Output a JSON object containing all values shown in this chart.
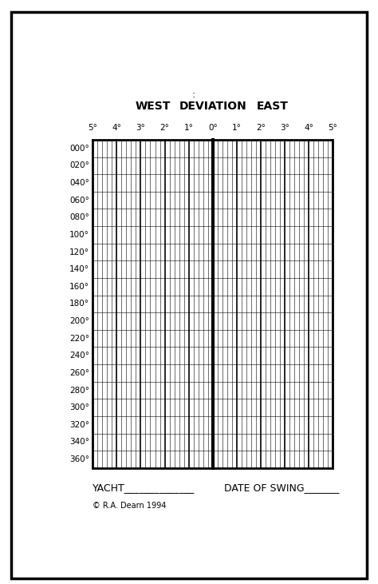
{
  "title": ":",
  "west_label": "WEST",
  "east_label": "EAST",
  "deviation_label": "DEVIATION",
  "col_labels": [
    "5°",
    "4°",
    "3°",
    "2°",
    "1°",
    "0°",
    "1°",
    "2°",
    "3°",
    "4°",
    "5°"
  ],
  "row_labels": [
    "000°",
    "020°",
    "040°",
    "060°",
    "080°",
    "100°",
    "120°",
    "140°",
    "160°",
    "180°",
    "200°",
    "220°",
    "240°",
    "260°",
    "280°",
    "300°",
    "320°",
    "340°",
    "360°"
  ],
  "yacht_label": "YACHT",
  "date_label": "DATE OF SWING",
  "copyright": "© R.A. Dearn 1994",
  "n_cols": 11,
  "n_rows": 19,
  "sub_cols": 5,
  "background": "#ffffff",
  "grid_color": "#000000",
  "border_color": "#000000"
}
